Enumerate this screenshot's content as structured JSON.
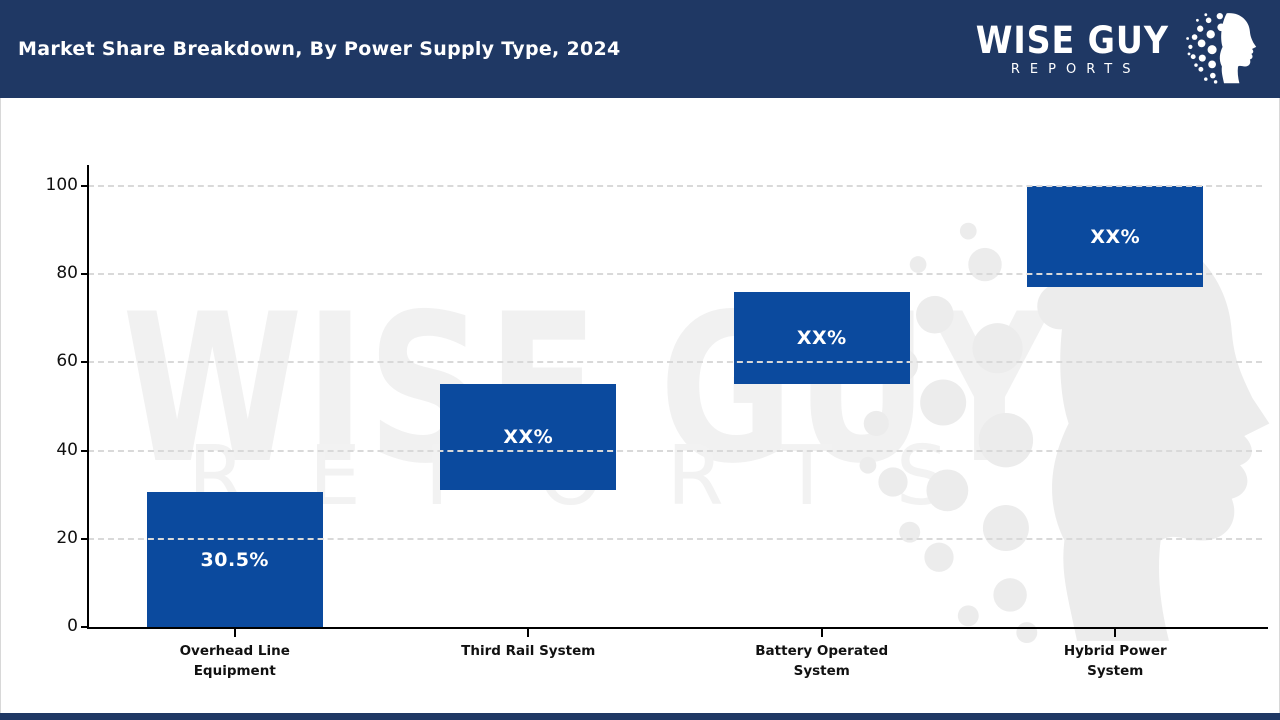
{
  "header": {
    "title": "Market Share Breakdown, By Power Supply Type, 2024",
    "logo": {
      "wordmark": "WISE GUY",
      "tagline": "REPORTS"
    }
  },
  "watermark": {
    "wordmark": "WISE GUY",
    "tagline": "REPORTS"
  },
  "chart_data": {
    "type": "bar",
    "subtype": "floating-range waterfall (each bar spans from previous cumulative value)",
    "title": "Market Share Breakdown, By Power Supply Type, 2024",
    "categories": [
      "Overhead Line\nEquipment",
      "Third Rail System",
      "Battery Operated\nSystem",
      "Hybrid Power\nSystem"
    ],
    "series": [
      {
        "name": "Market share (%)",
        "ranges": [
          [
            0,
            30.5
          ],
          [
            31,
            55
          ],
          [
            55,
            76
          ],
          [
            77,
            100
          ]
        ],
        "labels": [
          "30.5%",
          "XX%",
          "XX%",
          "XX%"
        ]
      }
    ],
    "xlabel": "",
    "ylabel": "",
    "yticks": [
      0,
      20,
      40,
      60,
      80,
      100
    ],
    "ylim": [
      0,
      105
    ],
    "grid": "horizontal dashed",
    "legend": "none",
    "colors": {
      "bar": "#0b4a9e",
      "bar_label": "#ffffff",
      "axis": "#000000",
      "gridline": "#d9d9d9",
      "header_bg": "#1f3864",
      "watermark": "#f1f1f1"
    }
  }
}
